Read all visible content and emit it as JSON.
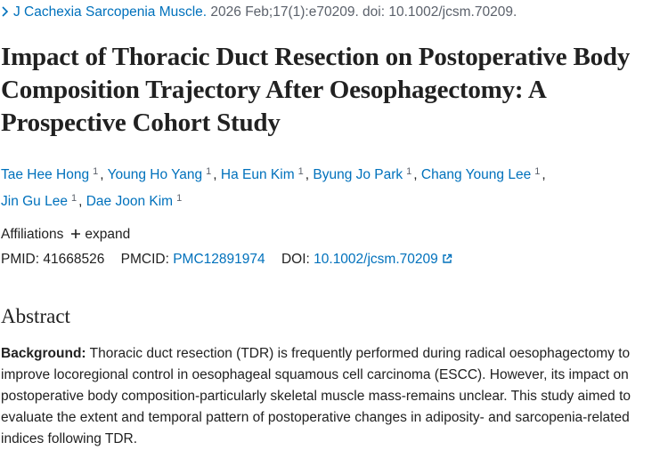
{
  "citation": {
    "journal": "J Cachexia Sarcopenia Muscle.",
    "details": "2026 Feb;17(1):e70209. doi: 10.1002/jcsm.70209."
  },
  "title": "Impact of Thoracic Duct Resection on Postoperative Body Composition Trajectory After Oesophagectomy: A Prospective Cohort Study",
  "authors": [
    {
      "name": "Tae Hee Hong",
      "aff": "1"
    },
    {
      "name": "Young Ho Yang",
      "aff": "1"
    },
    {
      "name": "Ha Eun Kim",
      "aff": "1"
    },
    {
      "name": "Byung Jo Park",
      "aff": "1"
    },
    {
      "name": "Chang Young Lee",
      "aff": "1"
    },
    {
      "name": "Jin Gu Lee",
      "aff": "1"
    },
    {
      "name": "Dae Joon Kim",
      "aff": "1"
    }
  ],
  "author_separator": ",",
  "affiliations": {
    "label": "Affiliations",
    "toggle": "expand"
  },
  "identifiers": {
    "pmid_label": "PMID:",
    "pmid": "41668526",
    "pmcid_label": "PMCID:",
    "pmcid": "PMC12891974",
    "doi_label": "DOI:",
    "doi": "10.1002/jcsm.70209"
  },
  "abstract": {
    "heading": "Abstract",
    "background_label": "Background:",
    "background_text": "Thoracic duct resection (TDR) is frequently performed during radical oesophagectomy to improve locoregional control in oesophageal squamous cell carcinoma (ESCC). However, its impact on postoperative body composition-particularly skeletal muscle mass-remains unclear. This study aimed to evaluate the extent and temporal pattern of postoperative changes in adiposity- and sarcopenia-related indices following TDR."
  }
}
